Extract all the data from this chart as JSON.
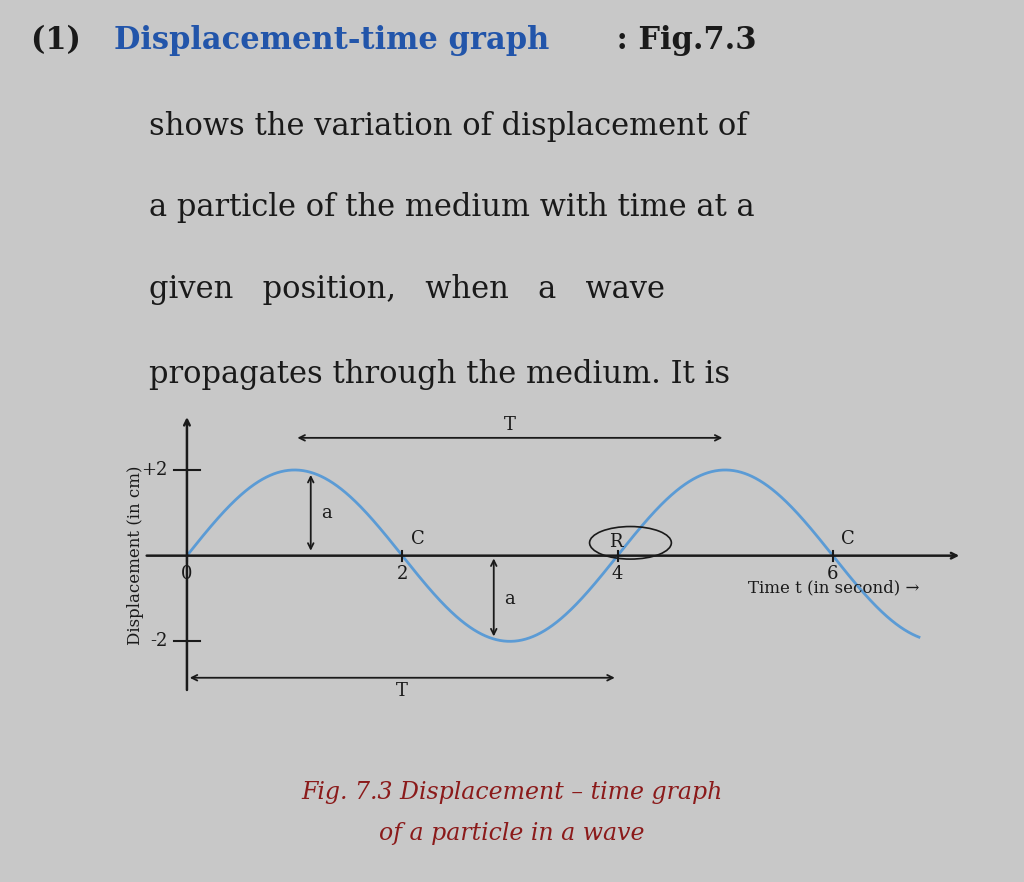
{
  "background_color": "#c8c8c8",
  "wave_color": "#5b9bd5",
  "wave_linewidth": 2.0,
  "axis_color": "#1a1a1a",
  "text_color": "#1a1a1a",
  "blue_color": "#2255aa",
  "caption_color": "#8b1a1a",
  "amplitude": 2,
  "period": 4,
  "xlim": [
    -0.5,
    7.3
  ],
  "ylim": [
    -3.5,
    3.5
  ],
  "xlabel": "Time t (in second) →",
  "ylabel": "Displacement (in cm)",
  "fig_caption_line1": "Fig. 7.3 Displacement – time graph",
  "fig_caption_line2": "of a particle in a wave",
  "T_upper_x1": 1.0,
  "T_upper_x2": 5.0,
  "T_upper_y": 2.75,
  "T_lower_x1": 0.0,
  "T_lower_x2": 4.0,
  "T_lower_y": -2.85,
  "a_upper_x": 1.15,
  "a_lower_x": 2.85
}
